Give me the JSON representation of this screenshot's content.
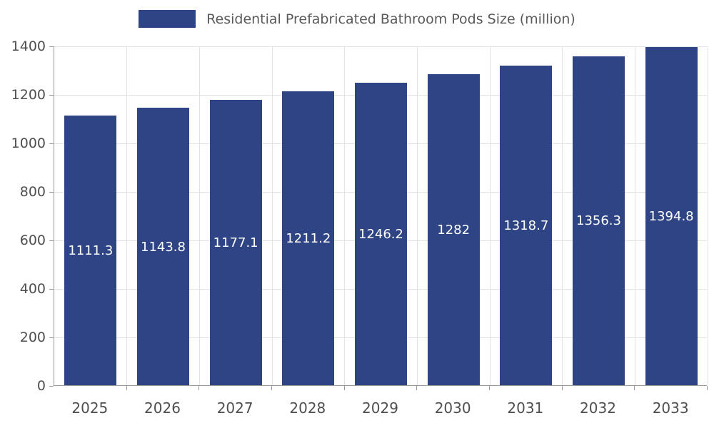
{
  "chart_data": {
    "type": "bar",
    "title": "Residential Prefabricated Bathroom Pods Size (million)",
    "categories": [
      "2025",
      "2026",
      "2027",
      "2028",
      "2029",
      "2030",
      "2031",
      "2032",
      "2033"
    ],
    "values": [
      1111.3,
      1143.8,
      1177.1,
      1211.2,
      1246.2,
      1282,
      1318.7,
      1356.3,
      1394.8
    ],
    "labels": [
      "1111.3",
      "1143.8",
      "1177.1",
      "1211.2",
      "1246.2",
      "1282",
      "1318.7",
      "1356.3",
      "1394.8"
    ],
    "xlabel": "",
    "ylabel": "",
    "ylim": [
      0,
      1400
    ],
    "yticks": [
      0,
      200,
      400,
      600,
      800,
      1000,
      1200,
      1400
    ],
    "grid": true,
    "legend_position": "top",
    "bar_color": "#2E4484",
    "label_color": "#FFFFFF",
    "axis_color": "#9A9A9A",
    "grid_color": "#E2E2E2",
    "text_color": "#4F4F4F"
  }
}
